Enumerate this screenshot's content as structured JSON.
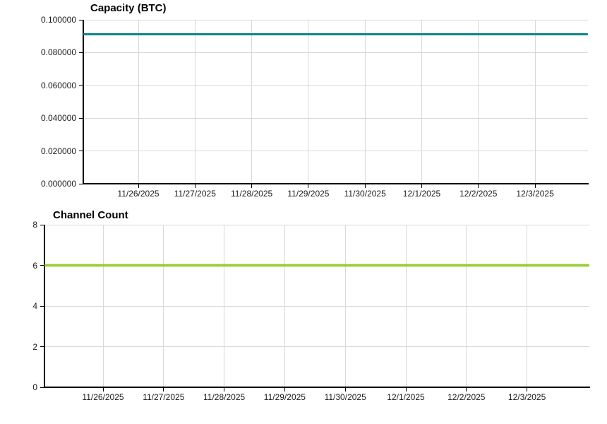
{
  "panel": {
    "background": "#ffffff",
    "text_color": "#1a1a1a",
    "grid_color": "#d8d8d8",
    "axis_color": "#000000"
  },
  "chart_data": [
    {
      "type": "line",
      "title": "Capacity (BTC)",
      "xlabel": "",
      "ylabel": "",
      "ylim": [
        0,
        0.1
      ],
      "grid": true,
      "legend": "none",
      "x_tick_labels": [
        "11/26/2025",
        "11/27/2025",
        "11/28/2025",
        "11/29/2025",
        "11/30/2025",
        "12/1/2025",
        "12/2/2025",
        "12/3/2025"
      ],
      "y_tick_labels": [
        "0.000000",
        "0.020000",
        "0.040000",
        "0.060000",
        "0.080000",
        "0.100000"
      ],
      "y_tick_values": [
        0,
        0.02,
        0.04,
        0.06,
        0.08,
        0.1
      ],
      "series": [
        {
          "name": "Capacity (BTC)",
          "color": "#08868a",
          "constant": true,
          "values": [
            0.0913,
            0.0913,
            0.0913,
            0.0913,
            0.0913,
            0.0913,
            0.0913,
            0.0913
          ]
        }
      ]
    },
    {
      "type": "line",
      "title": "Channel Count",
      "xlabel": "",
      "ylabel": "",
      "ylim": [
        0,
        8
      ],
      "grid": true,
      "legend": "none",
      "x_tick_labels": [
        "11/26/2025",
        "11/27/2025",
        "11/28/2025",
        "11/29/2025",
        "11/30/2025",
        "12/1/2025",
        "12/2/2025",
        "12/3/2025"
      ],
      "y_tick_labels": [
        "0",
        "2",
        "4",
        "6",
        "8"
      ],
      "y_tick_values": [
        0,
        2,
        4,
        6,
        8
      ],
      "series": [
        {
          "name": "Channel Count",
          "color": "#9acd32",
          "constant": true,
          "values": [
            6,
            6,
            6,
            6,
            6,
            6,
            6,
            6
          ]
        }
      ]
    }
  ]
}
